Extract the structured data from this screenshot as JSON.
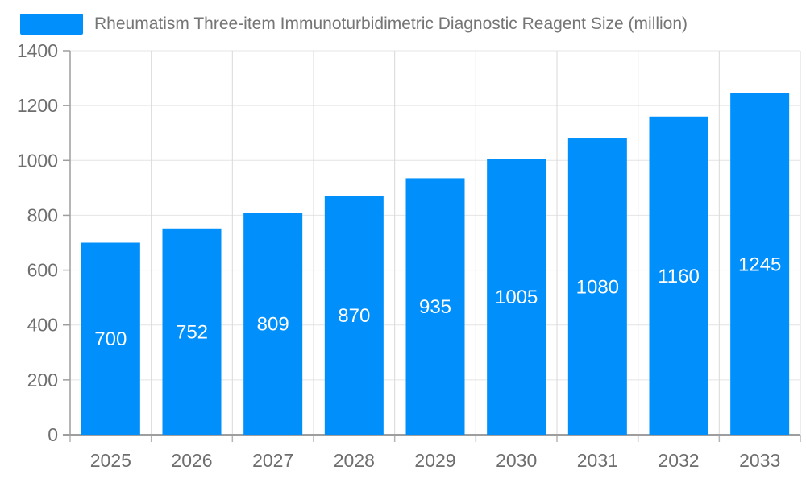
{
  "chart_data": {
    "type": "bar",
    "title": "Rheumatism Three-item Immunoturbidimetric Diagnostic Reagent Size (million)",
    "series": [
      {
        "name": "Rheumatism Three-item Immunoturbidimetric Diagnostic Reagent Size (million)",
        "values": [
          700,
          752,
          809,
          870,
          935,
          1005,
          1080,
          1160,
          1245
        ]
      }
    ],
    "categories": [
      "2025",
      "2026",
      "2027",
      "2028",
      "2029",
      "2030",
      "2031",
      "2032",
      "2033"
    ],
    "value_labels": [
      "700",
      "752",
      "809",
      "870",
      "935",
      "1005",
      "1080",
      "1160",
      "1245"
    ],
    "xlabel": "",
    "ylabel": "",
    "ylim": [
      0,
      1400
    ],
    "yticks": [
      0,
      200,
      400,
      600,
      800,
      1000,
      1200,
      1400
    ],
    "grid": true,
    "legend_position": "top-left",
    "value_label_position": "inside-center"
  },
  "colors": {
    "bar": "#008FFB",
    "legend_text": "#757575",
    "axis_label": "#6e6e6e",
    "value_label": "#ffffff",
    "grid_horizontal": "#e4e4e4",
    "grid_vertical": "#d9d9d9",
    "axis_line": "#9e9e9e",
    "tick_mark": "#b5b5b5",
    "background": "#ffffff"
  }
}
